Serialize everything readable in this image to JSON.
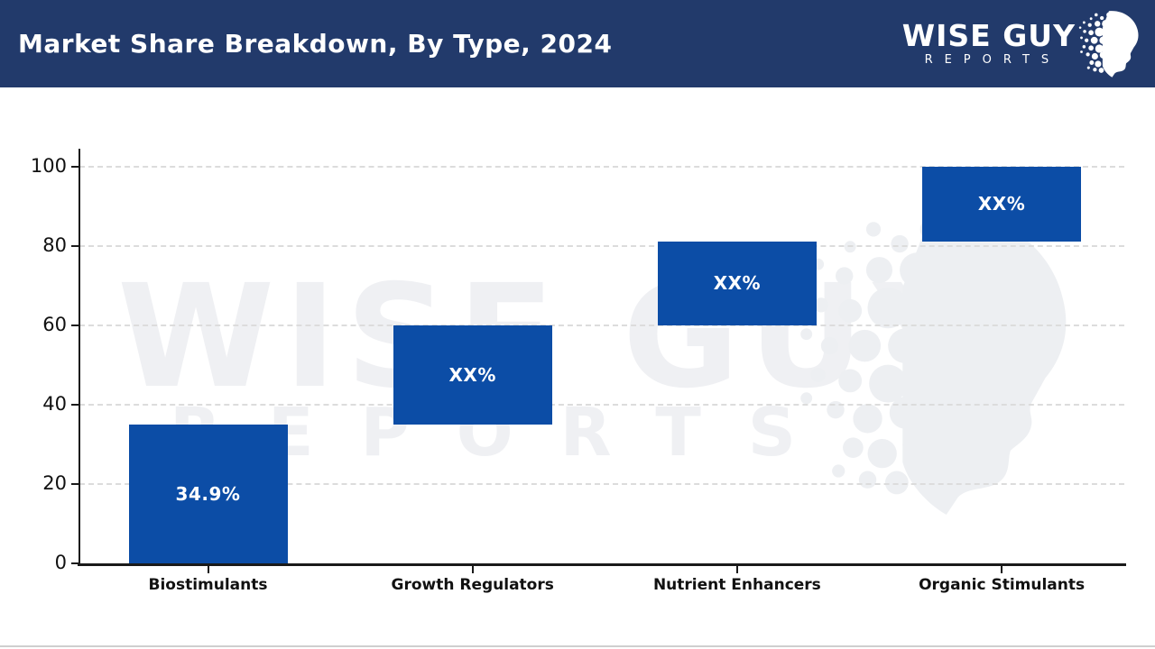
{
  "header": {
    "title": "Market Share Breakdown, By Type, 2024",
    "logo": {
      "brand": "WISE GUY",
      "sub": "REPORTS"
    }
  },
  "watermark": {
    "brand": "WISE GUY",
    "sub": "REPORTS"
  },
  "colors": {
    "header_bg": "#223A6B",
    "bar": "#0C4DA6",
    "bar_value_text": "#FFFFFF",
    "gridline": "#DCDCDC",
    "axis": "#1A1A1A",
    "watermark": "#EFF0F3",
    "bottom_rule": "#CFCFCF"
  },
  "chart_data": {
    "type": "bar",
    "subtype": "waterfall",
    "title": "Market Share Breakdown, By Type, 2024",
    "categories": [
      "Biostimulants",
      "Growth Regulators",
      "Nutrient Enhancers",
      "Organic Stimulants"
    ],
    "segments": [
      {
        "category": "Biostimulants",
        "start": 0,
        "end": 34.9,
        "label": "34.9%"
      },
      {
        "category": "Growth Regulators",
        "start": 34.9,
        "end": 60.1,
        "label": "XX%"
      },
      {
        "category": "Nutrient Enhancers",
        "start": 60.1,
        "end": 81.2,
        "label": "XX%"
      },
      {
        "category": "Organic Stimulants",
        "start": 81.2,
        "end": 100,
        "label": "XX%"
      }
    ],
    "yticks": [
      0,
      20,
      40,
      60,
      80,
      100
    ],
    "ylim": [
      0,
      104
    ],
    "xlabel": "",
    "ylabel": "",
    "grid": "horizontal-dashed",
    "legend": "none",
    "bar_color": "#0C4DA6",
    "value_label_color": "#FFFFFF"
  }
}
